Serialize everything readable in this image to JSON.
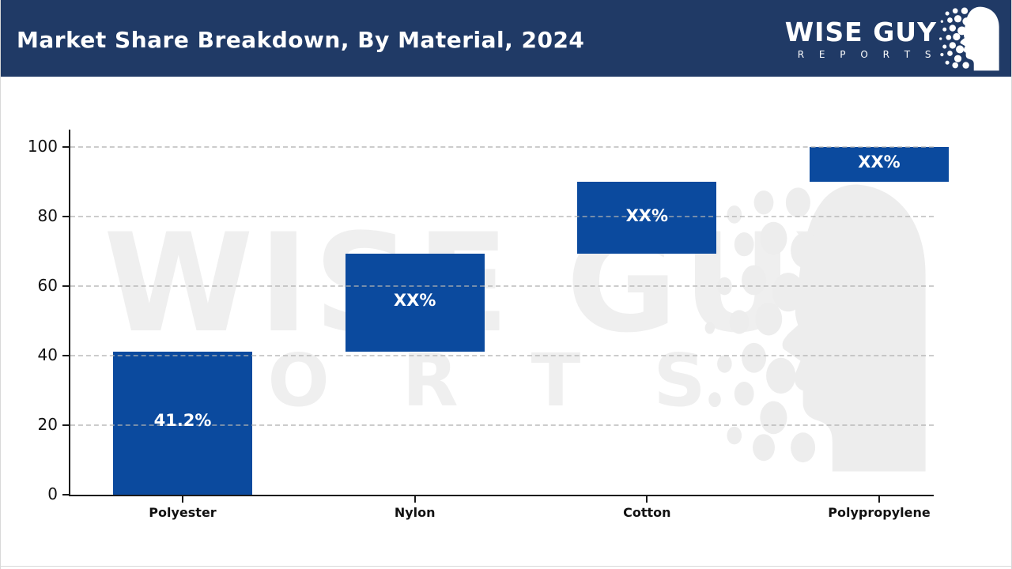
{
  "header": {
    "title": "Market Share Breakdown, By Material, 2024",
    "bg_color": "#203a66",
    "logo": {
      "name": "WISE GUY",
      "sub": "R E P O R T S"
    }
  },
  "watermark": {
    "line1": "WISE GUY",
    "line2": "P O R T S"
  },
  "chart_data": {
    "type": "bar",
    "subtype": "waterfall",
    "title": "Market Share Breakdown, By Material, 2024",
    "categories": [
      "Polyester",
      "Nylon",
      "Cotton",
      "Polypropylene"
    ],
    "segments": [
      {
        "category": "Polyester",
        "start": 0,
        "end": 41.2,
        "label": "41.2%"
      },
      {
        "category": "Nylon",
        "start": 41.2,
        "end": 69.3,
        "label": "XX%"
      },
      {
        "category": "Cotton",
        "start": 69.3,
        "end": 90,
        "label": "XX%"
      },
      {
        "category": "Polypropylene",
        "start": 90,
        "end": 100,
        "label": "XX%"
      }
    ],
    "ylim": [
      0,
      105
    ],
    "yticks": [
      0,
      20,
      40,
      60,
      80,
      100
    ],
    "xlabel": "",
    "ylabel": "",
    "grid": "horizontal-dashed-over-bars",
    "legend": "none",
    "bar_color": "#0b4a9e",
    "bar_label_color": "#ffffff",
    "axis_color": "#1a1a1a"
  }
}
